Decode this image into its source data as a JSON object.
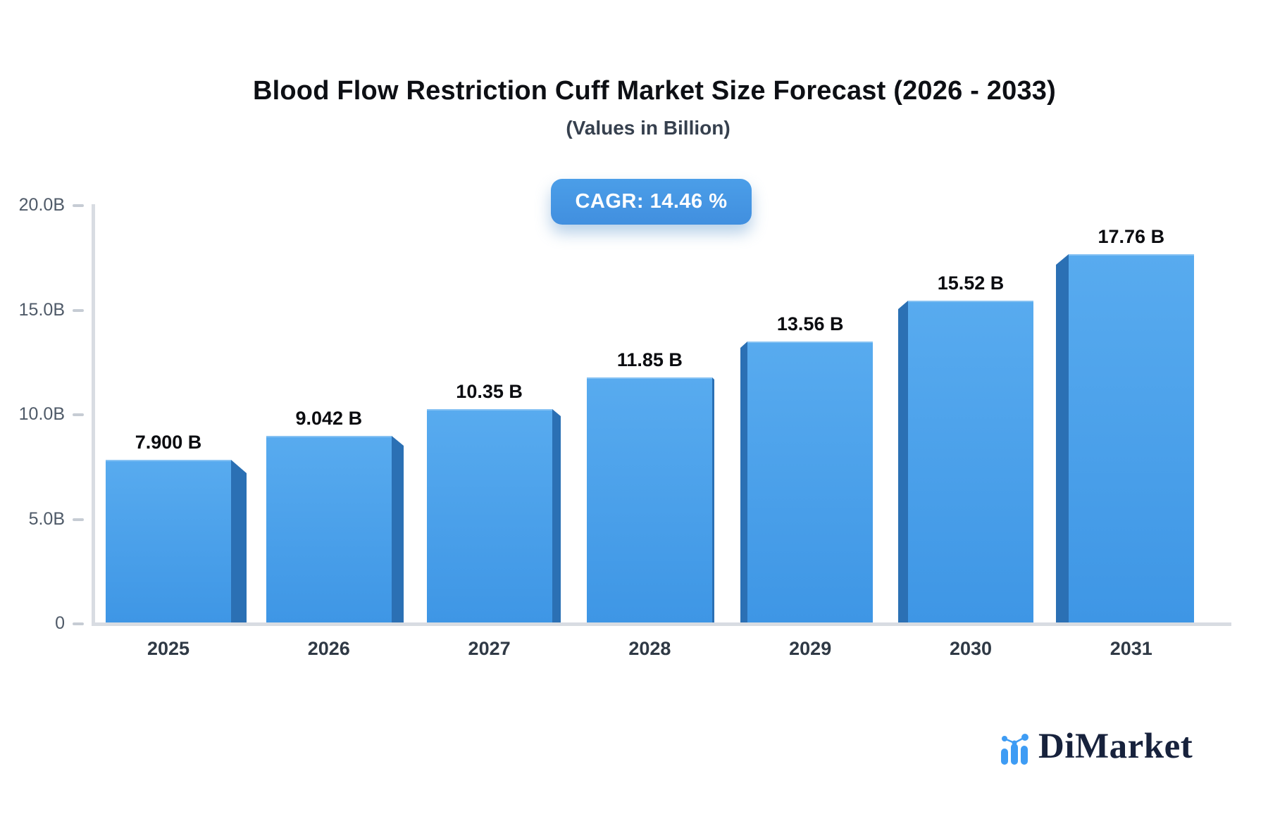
{
  "header": {
    "title": "Blood Flow Restriction Cuff Market Size Forecast (2026 - 2033)",
    "subtitle": "(Values in Billion)",
    "cagr_badge": "CAGR: 14.46 %"
  },
  "chart_data": {
    "type": "bar",
    "style": "3d-perspective-bars",
    "title": "Blood Flow Restriction Cuff Market Size Forecast (2026 - 2033)",
    "subtitle": "(Values in Billion)",
    "cagr_percent": "14.46 %",
    "categories": [
      "2025",
      "2026",
      "2027",
      "2028",
      "2029",
      "2030",
      "2031"
    ],
    "values": [
      7.9,
      9.042,
      10.35,
      11.85,
      13.56,
      15.52,
      17.76
    ],
    "value_labels": [
      "7.900 B",
      "9.042 B",
      "10.35 B",
      "11.85 B",
      "13.56 B",
      "15.52 B",
      "17.76 B"
    ],
    "unit": "Billion",
    "y_ticks": [
      {
        "value": 0,
        "label": "0"
      },
      {
        "value": 5,
        "label": "5.0B"
      },
      {
        "value": 10,
        "label": "10.0B"
      },
      {
        "value": 15,
        "label": "15.0B"
      },
      {
        "value": 20,
        "label": "20.0B"
      }
    ],
    "ylim": [
      0,
      20
    ],
    "xlabel": "",
    "ylabel": "",
    "grid": false,
    "legend": "none",
    "colors": {
      "bar_face_top": "#58abef",
      "bar_face_bottom": "#3e96e5",
      "bar_side": "#2b70b4",
      "axis_line": "#d8dce2",
      "tick_dash": "#c6ccd4",
      "badge_background": "#4b9ee8",
      "logo_blue": "#3e9cf4",
      "logo_text_color": "#17223c"
    }
  },
  "branding": {
    "logo_text": "DiMarket",
    "logo_icon": "mini-bar-line-chart-icon"
  }
}
